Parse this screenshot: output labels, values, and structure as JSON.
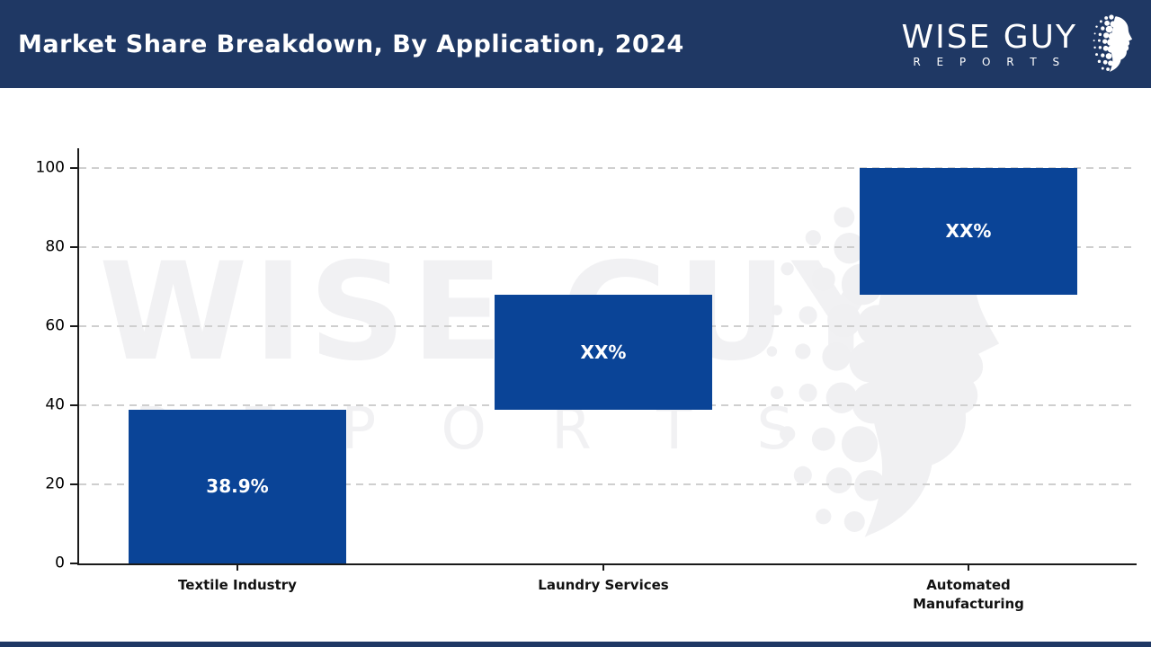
{
  "header": {
    "title": "Market Share Breakdown, By Application, 2024",
    "logo": {
      "line1": "WISE GUY",
      "line2": "R E P O R T S"
    }
  },
  "watermark": {
    "line1": "WISE GUY",
    "line2": "R E P O R T S"
  },
  "chart_data": {
    "type": "bar",
    "subtype": "floating-waterfall",
    "title": "Market Share Breakdown, By Application, 2024",
    "categories": [
      "Textile Industry",
      "Laundry Services",
      "Automated Manufacturing"
    ],
    "bars": [
      {
        "category": "Textile Industry",
        "start": 0,
        "end": 38.9,
        "label": "38.9%"
      },
      {
        "category": "Laundry Services",
        "start": 38.9,
        "end": 68,
        "label": "XX%"
      },
      {
        "category": "Automated Manufacturing",
        "start": 68,
        "end": 100,
        "label": "XX%"
      }
    ],
    "xlabel": "",
    "ylabel": "",
    "ylim": [
      0,
      100
    ],
    "yticks": [
      0,
      20,
      40,
      60,
      80,
      100
    ],
    "grid": "dashed-horizontal",
    "legend": false,
    "colors": {
      "bar": "#0a4497",
      "bar_label": "#ffffff",
      "grid": "#cfcfcf",
      "axis": "#1a1a1a",
      "tick_label": "#000000",
      "header_bg": "#1f3864",
      "watermark": "#f1f1f3"
    }
  }
}
